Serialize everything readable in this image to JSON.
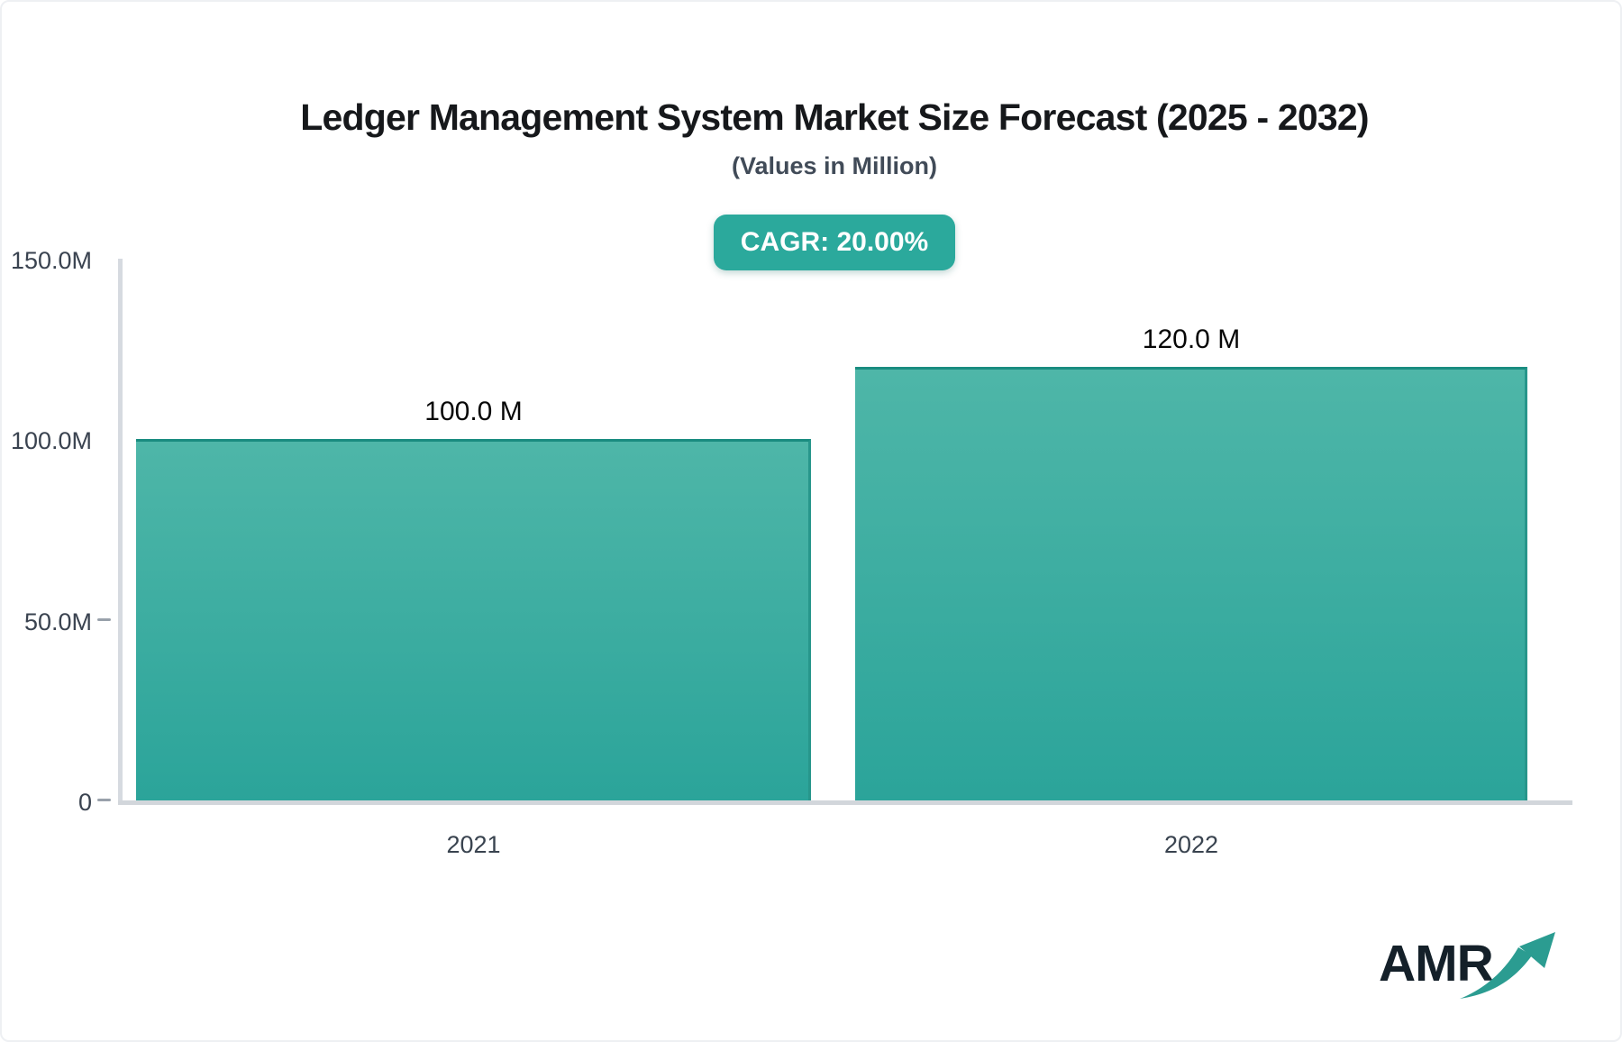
{
  "header": {
    "title": "Ledger Management System Market Size Forecast (2025 - 2032)",
    "subtitle": "(Values in Million)",
    "cagr_badge": "CAGR: 20.00%"
  },
  "chart_data": {
    "type": "bar",
    "title": "Ledger Management System Market Size Forecast (2025 - 2032)",
    "subtitle": "(Values in Million)",
    "categories": [
      "2021",
      "2022"
    ],
    "values": [
      100.0,
      120.0
    ],
    "value_labels": [
      "100.0 M",
      "120.0 M"
    ],
    "unit": "Million",
    "cagr": "20.00%",
    "ylim": [
      0,
      150
    ],
    "yticks": [
      {
        "value": 150,
        "label": "150.0M",
        "tick_mark": false
      },
      {
        "value": 100,
        "label": "100.0M",
        "tick_mark": false
      },
      {
        "value": 50,
        "label": "50.0M",
        "tick_mark": true
      },
      {
        "value": 0,
        "label": "0",
        "tick_mark": true
      }
    ],
    "grid": false,
    "legend": false,
    "bar_color_top": "#4EB6A8",
    "bar_color_bottom": "#2BA49A",
    "badge_color": "#2BA99C",
    "axis_color": "#D2D6DB"
  },
  "logo": {
    "text": "AMR"
  }
}
